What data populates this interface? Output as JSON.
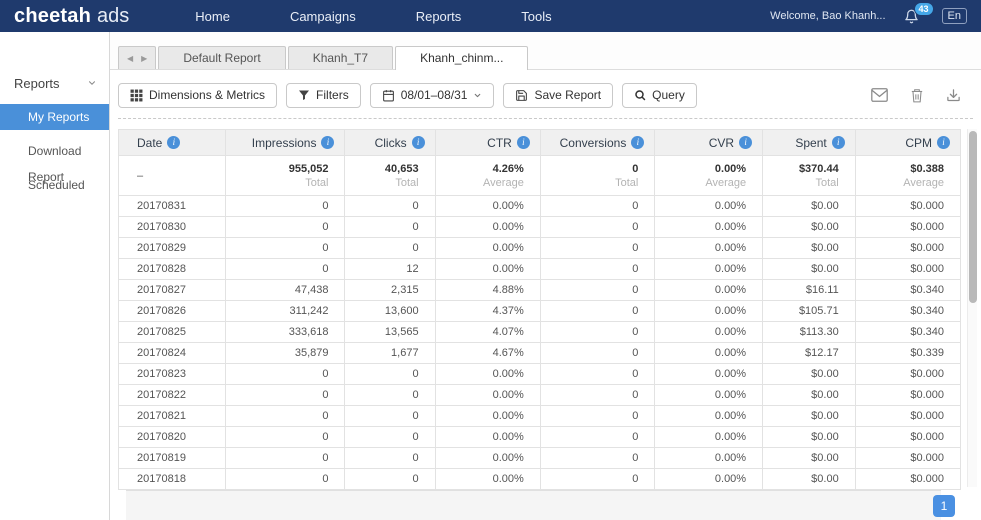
{
  "navbar": {
    "brand_bold": "cheetah",
    "brand_light": "ads",
    "items": [
      {
        "label": "Home"
      },
      {
        "label": "Campaigns"
      },
      {
        "label": "Reports"
      },
      {
        "label": "Tools"
      }
    ],
    "welcome": "Welcome,  Bao Khanh...",
    "notification_count": "43",
    "language": "En"
  },
  "sidebar": {
    "group_label": "Reports",
    "items": [
      {
        "label": "My Reports",
        "active": true
      },
      {
        "label": "Download Report",
        "active": false
      },
      {
        "label": "Scheduled",
        "active": false
      }
    ]
  },
  "tabs": [
    {
      "label": "Default Report",
      "active": false
    },
    {
      "label": "Khanh_T7",
      "active": false
    },
    {
      "label": "Khanh_chinm...",
      "active": true
    }
  ],
  "toolbar": {
    "dimensions_metrics": "Dimensions & Metrics",
    "filters": "Filters",
    "date_range": "08/01–08/31",
    "save_report": "Save Report",
    "query": "Query"
  },
  "icons": {
    "info": "i",
    "arrow_left": "◀",
    "arrow_right": "▶"
  },
  "table": {
    "columns": [
      "Date",
      "Impressions",
      "Clicks",
      "CTR",
      "Conversions",
      "CVR",
      "Spent",
      "CPM"
    ],
    "summary": {
      "date": "–",
      "values": [
        {
          "value": "955,052",
          "caption": "Total"
        },
        {
          "value": "40,653",
          "caption": "Total"
        },
        {
          "value": "4.26%",
          "caption": "Average"
        },
        {
          "value": "0",
          "caption": "Total"
        },
        {
          "value": "0.00%",
          "caption": "Average"
        },
        {
          "value": "$370.44",
          "caption": "Total"
        },
        {
          "value": "$0.388",
          "caption": "Average"
        }
      ]
    },
    "rows": [
      [
        "20170831",
        "0",
        "0",
        "0.00%",
        "0",
        "0.00%",
        "$0.00",
        "$0.000"
      ],
      [
        "20170830",
        "0",
        "0",
        "0.00%",
        "0",
        "0.00%",
        "$0.00",
        "$0.000"
      ],
      [
        "20170829",
        "0",
        "0",
        "0.00%",
        "0",
        "0.00%",
        "$0.00",
        "$0.000"
      ],
      [
        "20170828",
        "0",
        "12",
        "0.00%",
        "0",
        "0.00%",
        "$0.00",
        "$0.000"
      ],
      [
        "20170827",
        "47,438",
        "2,315",
        "4.88%",
        "0",
        "0.00%",
        "$16.11",
        "$0.340"
      ],
      [
        "20170826",
        "311,242",
        "13,600",
        "4.37%",
        "0",
        "0.00%",
        "$105.71",
        "$0.340"
      ],
      [
        "20170825",
        "333,618",
        "13,565",
        "4.07%",
        "0",
        "0.00%",
        "$113.30",
        "$0.340"
      ],
      [
        "20170824",
        "35,879",
        "1,677",
        "4.67%",
        "0",
        "0.00%",
        "$12.17",
        "$0.339"
      ],
      [
        "20170823",
        "0",
        "0",
        "0.00%",
        "0",
        "0.00%",
        "$0.00",
        "$0.000"
      ],
      [
        "20170822",
        "0",
        "0",
        "0.00%",
        "0",
        "0.00%",
        "$0.00",
        "$0.000"
      ],
      [
        "20170821",
        "0",
        "0",
        "0.00%",
        "0",
        "0.00%",
        "$0.00",
        "$0.000"
      ],
      [
        "20170820",
        "0",
        "0",
        "0.00%",
        "0",
        "0.00%",
        "$0.00",
        "$0.000"
      ],
      [
        "20170819",
        "0",
        "0",
        "0.00%",
        "0",
        "0.00%",
        "$0.00",
        "$0.000"
      ],
      [
        "20170818",
        "0",
        "0",
        "0.00%",
        "0",
        "0.00%",
        "$0.00",
        "$0.000"
      ]
    ]
  },
  "pagination": {
    "current_page": "1"
  },
  "colors": {
    "navbar_bg": "#1f3a6d",
    "accent_blue": "#4a90d9",
    "badge_blue": "#45a7e8",
    "pagination_blue": "#4a90e2",
    "header_bg": "#f0f0f0",
    "footer_bg": "#f5f5f5"
  }
}
